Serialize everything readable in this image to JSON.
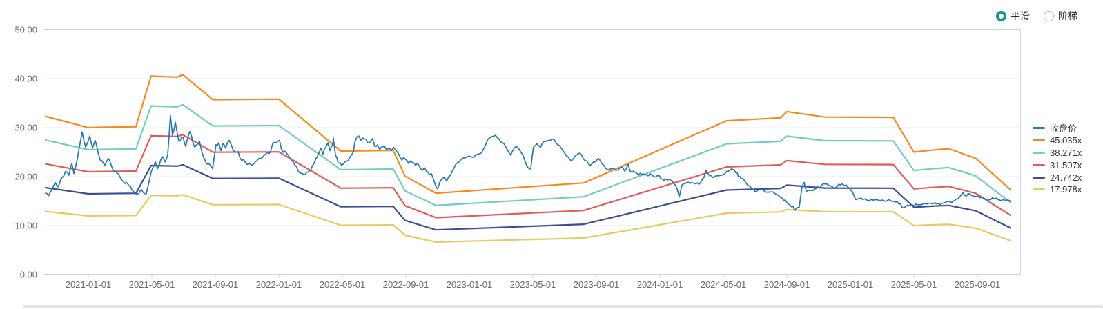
{
  "controls": {
    "accent_color": "#0d93a5",
    "options": [
      {
        "label": "平滑",
        "selected": true
      },
      {
        "label": "阶梯",
        "selected": false
      }
    ]
  },
  "legend": {
    "items": [
      {
        "label": "收盘价",
        "color": "#2878b0"
      },
      {
        "label": "45.035x",
        "color": "#f6891e"
      },
      {
        "label": "38.271x",
        "color": "#73cbc5"
      },
      {
        "label": "31.507x",
        "color": "#e25a5a"
      },
      {
        "label": "24.742x",
        "color": "#3d4c93"
      },
      {
        "label": "17.978x",
        "color": "#e8ca62"
      }
    ]
  },
  "chart_data": {
    "type": "line",
    "title": "",
    "grid": "horizontal",
    "legend_position": "right",
    "y_axis": {
      "min": 0,
      "max": 50,
      "tick_labels": [
        "0.00",
        "10.00",
        "20.00",
        "30.00",
        "40.00",
        "50.00"
      ]
    },
    "x_axis": {
      "months_per_tick": 4,
      "domain_months": [
        -2.7,
        58.09
      ],
      "tick_labels": [
        "2021-01-01",
        "2021-05-01",
        "2021-09-01",
        "2022-01-01",
        "2022-05-01",
        "2022-09-01",
        "2023-01-01",
        "2023-05-01",
        "2023-09-01",
        "2024-01-01",
        "2024-05-01",
        "2024-09-01",
        "2025-01-01",
        "2025-05-01",
        "2025-09-01"
      ]
    },
    "close_series": {
      "name": "收盘价",
      "color": "#2878b0",
      "anchors": [
        [
          -2.7,
          16.6
        ],
        [
          -2.5,
          16.1
        ],
        [
          -2.3,
          17.3
        ],
        [
          -2.09,
          18.8
        ],
        [
          -1.91,
          17.9
        ],
        [
          -1.65,
          19.8
        ],
        [
          -1.43,
          21.1
        ],
        [
          -1.22,
          20.3
        ],
        [
          -1.04,
          22.7
        ],
        [
          -0.91,
          20.6
        ],
        [
          -0.7,
          23.5
        ],
        [
          -0.39,
          29.1
        ],
        [
          -0.17,
          26.0
        ],
        [
          0.09,
          28.3
        ],
        [
          0.26,
          25.8
        ],
        [
          0.43,
          27.4
        ],
        [
          0.74,
          23.4
        ],
        [
          1.04,
          22.3
        ],
        [
          1.26,
          23.7
        ],
        [
          1.61,
          21.1
        ],
        [
          1.91,
          20.6
        ],
        [
          2.13,
          19.2
        ],
        [
          2.48,
          18.5
        ],
        [
          2.83,
          17.0
        ],
        [
          3.09,
          16.5
        ],
        [
          3.35,
          17.3
        ],
        [
          3.65,
          16.5
        ],
        [
          3.96,
          21.0
        ],
        [
          4.22,
          23.0
        ],
        [
          4.35,
          21.6
        ],
        [
          4.65,
          24.1
        ],
        [
          4.83,
          23.0
        ],
        [
          5.0,
          24.5
        ],
        [
          5.17,
          32.5
        ],
        [
          5.3,
          28.5
        ],
        [
          5.48,
          31.1
        ],
        [
          5.7,
          27.2
        ],
        [
          5.96,
          28.1
        ],
        [
          6.13,
          26.2
        ],
        [
          6.39,
          29.2
        ],
        [
          6.7,
          26.0
        ],
        [
          7.0,
          27.2
        ],
        [
          7.26,
          23.9
        ],
        [
          7.43,
          22.7
        ],
        [
          7.7,
          22.3
        ],
        [
          7.83,
          21.6
        ],
        [
          8.04,
          26.5
        ],
        [
          8.22,
          26.9
        ],
        [
          8.35,
          25.3
        ],
        [
          8.48,
          26.7
        ],
        [
          8.65,
          25.8
        ],
        [
          8.87,
          27.4
        ],
        [
          9.0,
          26.5
        ],
        [
          9.13,
          25.3
        ],
        [
          9.43,
          25.1
        ],
        [
          9.57,
          23.7
        ],
        [
          9.87,
          23.0
        ],
        [
          10.0,
          22.5
        ],
        [
          10.3,
          22.3
        ],
        [
          10.61,
          23.2
        ],
        [
          10.87,
          23.7
        ],
        [
          11.17,
          24.6
        ],
        [
          11.48,
          25.1
        ],
        [
          11.61,
          26.7
        ],
        [
          11.83,
          26.9
        ],
        [
          12.04,
          27.4
        ],
        [
          12.17,
          25.5
        ],
        [
          12.48,
          24.8
        ],
        [
          12.7,
          23.7
        ],
        [
          12.91,
          23.0
        ],
        [
          13.22,
          21.1
        ],
        [
          13.48,
          20.6
        ],
        [
          13.65,
          20.4
        ],
        [
          13.91,
          21.1
        ],
        [
          14.22,
          22.7
        ],
        [
          14.52,
          24.8
        ],
        [
          14.65,
          25.8
        ],
        [
          14.78,
          24.6
        ],
        [
          14.96,
          26.0
        ],
        [
          15.09,
          26.9
        ],
        [
          15.22,
          25.3
        ],
        [
          15.39,
          26.5
        ],
        [
          15.43,
          27.9
        ],
        [
          15.57,
          24.4
        ],
        [
          15.74,
          22.8
        ],
        [
          16.04,
          22.5
        ],
        [
          16.17,
          23.0
        ],
        [
          16.43,
          23.7
        ],
        [
          16.7,
          25.1
        ],
        [
          16.78,
          26.9
        ],
        [
          16.91,
          28.1
        ],
        [
          17.04,
          28.3
        ],
        [
          17.17,
          27.4
        ],
        [
          17.26,
          27.9
        ],
        [
          17.48,
          27.6
        ],
        [
          17.61,
          26.9
        ],
        [
          17.78,
          27.2
        ],
        [
          17.91,
          27.75
        ],
        [
          18.04,
          26.2
        ],
        [
          18.22,
          26.5
        ],
        [
          18.35,
          25.5
        ],
        [
          18.65,
          26.2
        ],
        [
          18.78,
          25.5
        ],
        [
          18.91,
          25.8
        ],
        [
          19.09,
          25.3
        ],
        [
          19.22,
          26.0
        ],
        [
          19.43,
          25.1
        ],
        [
          19.74,
          23.4
        ],
        [
          19.87,
          23.9
        ],
        [
          20.17,
          22.7
        ],
        [
          20.3,
          23.2
        ],
        [
          20.61,
          22.3
        ],
        [
          20.74,
          22.7
        ],
        [
          20.87,
          22.0
        ],
        [
          21.04,
          21.3
        ],
        [
          21.17,
          21.8
        ],
        [
          21.3,
          21.1
        ],
        [
          21.48,
          20.4
        ],
        [
          21.61,
          20.6
        ],
        [
          21.74,
          19.5
        ],
        [
          21.91,
          17.9
        ],
        [
          22.0,
          17.5
        ],
        [
          22.13,
          18.8
        ],
        [
          22.26,
          19.5
        ],
        [
          22.39,
          19.8
        ],
        [
          22.57,
          19.1
        ],
        [
          22.7,
          20.0
        ],
        [
          22.91,
          21.0
        ],
        [
          23.04,
          21.8
        ],
        [
          23.26,
          22.8
        ],
        [
          23.48,
          23.5
        ],
        [
          23.7,
          23.8
        ],
        [
          24.13,
          24.0
        ],
        [
          24.57,
          24.6
        ],
        [
          24.78,
          24.9
        ],
        [
          25.17,
          27.6
        ],
        [
          25.39,
          28.2
        ],
        [
          25.65,
          28.45
        ],
        [
          25.87,
          27.6
        ],
        [
          26.09,
          26.9
        ],
        [
          26.3,
          26.0
        ],
        [
          26.61,
          24.4
        ],
        [
          26.83,
          25.8
        ],
        [
          27.04,
          26.0
        ],
        [
          27.26,
          24.9
        ],
        [
          27.48,
          23.4
        ],
        [
          27.7,
          21.8
        ],
        [
          27.87,
          21.6
        ],
        [
          28.04,
          26.0
        ],
        [
          28.26,
          26.7
        ],
        [
          28.48,
          26.0
        ],
        [
          28.7,
          27.2
        ],
        [
          29.09,
          27.4
        ],
        [
          29.35,
          27.5
        ],
        [
          29.57,
          26.5
        ],
        [
          30.0,
          24.8
        ],
        [
          30.43,
          23.2
        ],
        [
          30.83,
          24.6
        ],
        [
          30.96,
          24.8
        ],
        [
          31.17,
          23.7
        ],
        [
          31.39,
          23.2
        ],
        [
          31.61,
          22.3
        ],
        [
          31.91,
          23.0
        ],
        [
          32.13,
          23.7
        ],
        [
          32.39,
          22.5
        ],
        [
          32.78,
          21.3
        ],
        [
          33.0,
          21.6
        ],
        [
          33.35,
          21.3
        ],
        [
          33.65,
          22.0
        ],
        [
          33.78,
          21.1
        ],
        [
          34.0,
          22.5
        ],
        [
          34.13,
          21.1
        ],
        [
          34.43,
          20.9
        ],
        [
          34.57,
          20.6
        ],
        [
          34.87,
          20.4
        ],
        [
          35.22,
          20.2
        ],
        [
          35.39,
          20.6
        ],
        [
          35.65,
          19.9
        ],
        [
          35.96,
          20.2
        ],
        [
          36.26,
          19.2
        ],
        [
          36.39,
          19.5
        ],
        [
          36.7,
          19.2
        ],
        [
          36.96,
          18.3
        ],
        [
          37.09,
          17.5
        ],
        [
          37.22,
          15.85
        ],
        [
          37.39,
          18.3
        ],
        [
          37.7,
          18.8
        ],
        [
          38.0,
          18.8
        ],
        [
          38.26,
          18.5
        ],
        [
          38.57,
          18.8
        ],
        [
          38.78,
          19.8
        ],
        [
          38.91,
          21.3
        ],
        [
          39.13,
          20.2
        ],
        [
          39.43,
          19.9
        ],
        [
          39.74,
          20.2
        ],
        [
          40.0,
          20.4
        ],
        [
          40.3,
          21.1
        ],
        [
          40.52,
          21.6
        ],
        [
          40.78,
          20.8
        ],
        [
          41.04,
          20.0
        ],
        [
          41.3,
          19.3
        ],
        [
          41.52,
          18.3
        ],
        [
          41.83,
          17.4
        ],
        [
          42.09,
          17.0
        ],
        [
          42.39,
          17.3
        ],
        [
          42.7,
          16.8
        ],
        [
          43.04,
          16.9
        ],
        [
          43.39,
          16.3
        ],
        [
          43.7,
          15.6
        ],
        [
          44.0,
          14.7
        ],
        [
          44.3,
          13.8
        ],
        [
          44.57,
          13.4
        ],
        [
          44.78,
          13.7
        ],
        [
          44.96,
          18.0
        ],
        [
          45.09,
          18.8
        ],
        [
          45.22,
          16.9
        ],
        [
          45.52,
          17.2
        ],
        [
          45.87,
          17.6
        ],
        [
          46.39,
          18.5
        ],
        [
          46.61,
          18.3
        ],
        [
          46.96,
          17.6
        ],
        [
          47.48,
          18.5
        ],
        [
          47.83,
          17.9
        ],
        [
          48.13,
          16.9
        ],
        [
          48.35,
          15.3
        ],
        [
          48.78,
          15.3
        ],
        [
          49.22,
          15.1
        ],
        [
          49.65,
          15.3
        ],
        [
          50.09,
          15.1
        ],
        [
          50.52,
          15.1
        ],
        [
          50.83,
          14.8
        ],
        [
          51.17,
          14.4
        ],
        [
          51.26,
          13.7
        ],
        [
          51.7,
          14.1
        ],
        [
          52.13,
          14.4
        ],
        [
          52.57,
          14.4
        ],
        [
          53.0,
          14.6
        ],
        [
          53.43,
          14.4
        ],
        [
          53.87,
          14.6
        ],
        [
          54.3,
          14.8
        ],
        [
          54.57,
          15.1
        ],
        [
          54.87,
          15.8
        ],
        [
          55.09,
          16.7
        ],
        [
          55.3,
          16.0
        ],
        [
          55.52,
          16.5
        ],
        [
          55.74,
          16.0
        ],
        [
          56.04,
          16.0
        ],
        [
          56.48,
          15.5
        ],
        [
          56.74,
          15.3
        ],
        [
          57.04,
          15.5
        ],
        [
          57.3,
          15.3
        ],
        [
          57.74,
          15.1
        ],
        [
          58.09,
          14.9
        ]
      ]
    },
    "pe_bands": {
      "reference_multiple": 45.035,
      "reference_anchors": [
        [
          -2.7,
          32.3
        ],
        [
          0.0,
          30.0
        ],
        [
          0.6,
          30.05
        ],
        [
          3.0,
          30.2
        ],
        [
          3.95,
          40.5
        ],
        [
          5.6,
          40.3
        ],
        [
          5.95,
          40.8
        ],
        [
          7.85,
          35.7
        ],
        [
          12.0,
          35.8
        ],
        [
          15.9,
          25.2
        ],
        [
          19.2,
          25.35
        ],
        [
          19.95,
          20.1
        ],
        [
          21.9,
          16.6
        ],
        [
          31.2,
          18.7
        ],
        [
          40.2,
          31.4
        ],
        [
          43.6,
          32.0
        ],
        [
          44.0,
          33.25
        ],
        [
          46.4,
          32.15
        ],
        [
          50.7,
          32.1
        ],
        [
          52.0,
          25.0
        ],
        [
          53.1,
          25.4
        ],
        [
          54.2,
          25.7
        ],
        [
          55.9,
          23.7
        ],
        [
          58.09,
          17.3
        ]
      ],
      "levels": [
        {
          "label": "45.035x",
          "multiple": 45.035,
          "color": "#f6891e"
        },
        {
          "label": "38.271x",
          "multiple": 38.271,
          "color": "#73cbc5"
        },
        {
          "label": "31.507x",
          "multiple": 31.507,
          "color": "#e25a5a"
        },
        {
          "label": "24.742x",
          "multiple": 24.742,
          "color": "#3d4c93"
        },
        {
          "label": "17.978x",
          "multiple": 17.978,
          "color": "#e8ca62"
        }
      ]
    }
  }
}
